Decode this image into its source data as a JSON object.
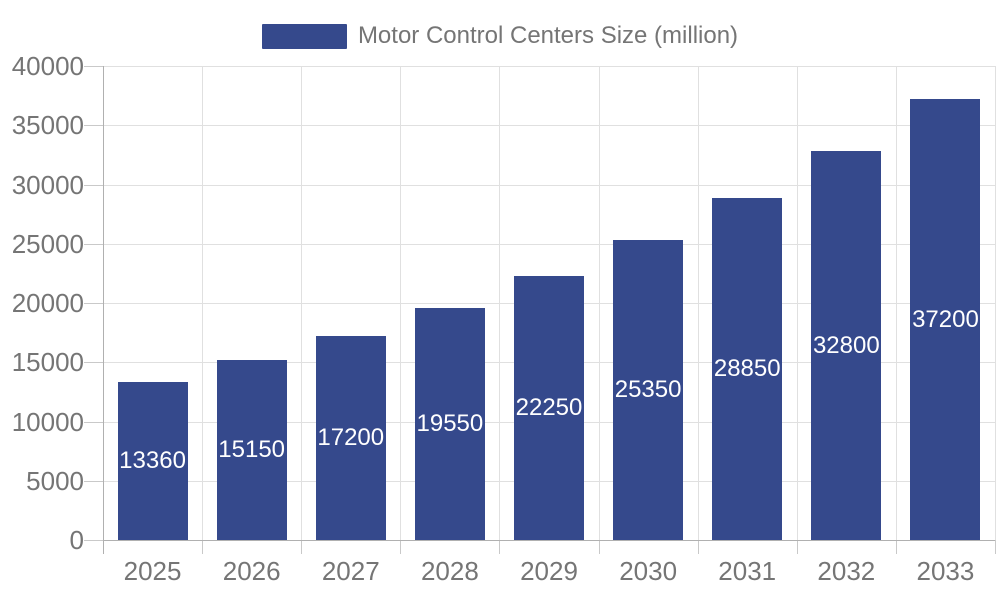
{
  "chart_data": {
    "type": "bar",
    "title": "Motor Control Centers Size (million)",
    "categories": [
      "2025",
      "2026",
      "2027",
      "2028",
      "2029",
      "2030",
      "2031",
      "2032",
      "2033"
    ],
    "values": [
      13360,
      15150,
      17200,
      19550,
      22250,
      25350,
      28850,
      32800,
      37200
    ],
    "series": [
      {
        "name": "Motor Control Centers Size (million)",
        "values": [
          13360,
          15150,
          17200,
          19550,
          22250,
          25350,
          28850,
          32800,
          37200
        ]
      }
    ],
    "xlabel": "",
    "ylabel": "",
    "ylim": [
      0,
      40000
    ],
    "yticks": [
      0,
      5000,
      10000,
      15000,
      20000,
      25000,
      30000,
      35000,
      40000
    ],
    "grid": true,
    "legend_position": "top-center",
    "bar_labels": "inside-center",
    "colors": {
      "bar": "#35498C",
      "bar_label": "#FFFFFF",
      "axis_text": "#757575",
      "grid": "#E0E0E0",
      "axis_line": "#B0B0B0",
      "tick": "#C9C9C9",
      "background": "#FFFFFF"
    }
  }
}
